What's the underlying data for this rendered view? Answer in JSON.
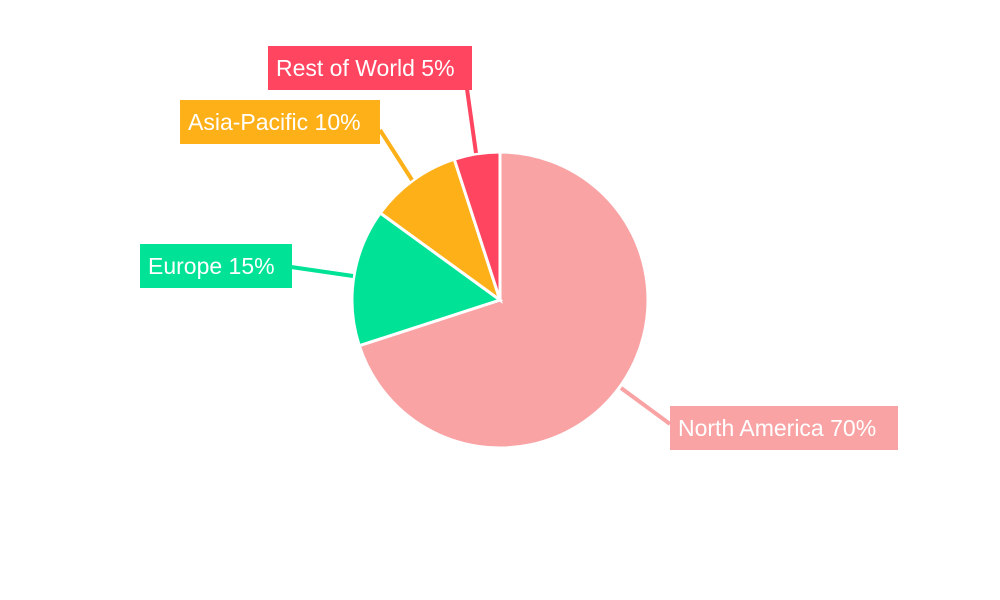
{
  "chart_data": {
    "type": "pie",
    "start_angle_deg": 0,
    "direction": "clockwise",
    "slices": [
      {
        "label": "North America",
        "value": 70,
        "display": "North America 70%",
        "color": "#f9a3a4"
      },
      {
        "label": "Europe",
        "value": 15,
        "display": "Europe 15%",
        "color": "#00e396"
      },
      {
        "label": "Asia-Pacific",
        "value": 10,
        "display": "Asia-Pacific 10%",
        "color": "#feb019"
      },
      {
        "label": "Rest of World",
        "value": 5,
        "display": "Rest of World 5%",
        "color": "#ff4560"
      }
    ],
    "legend": "none"
  }
}
